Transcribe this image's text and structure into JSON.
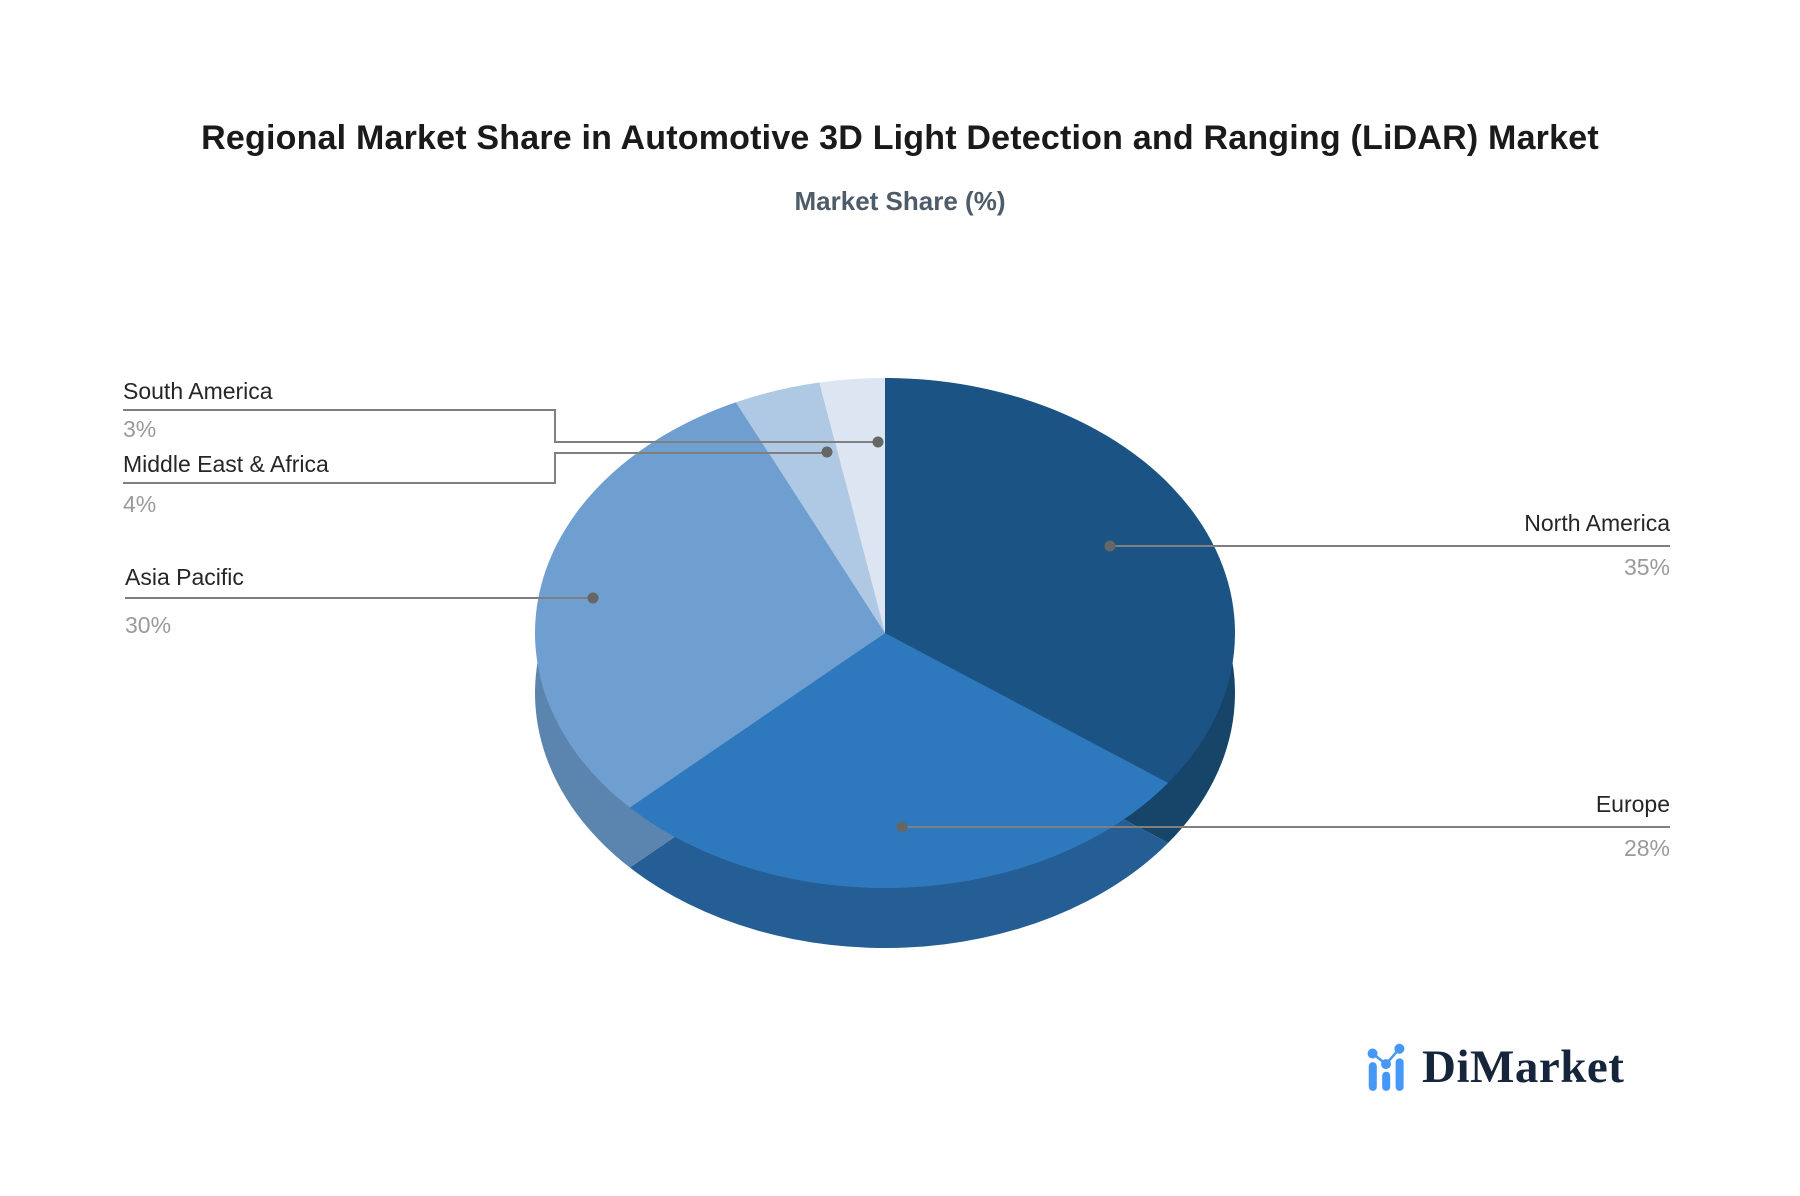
{
  "page": {
    "title": "Regional Market Share in Automotive 3D Light Detection and Ranging (LiDAR) Market",
    "subtitle": "Market Share (%)"
  },
  "branding": {
    "logo_text": "DiMarket",
    "logo_color": "#16253c",
    "logo_icon": "bar-line-chart-icon",
    "logo_icon_color": "#4598F7"
  },
  "chart_data": {
    "type": "pie",
    "style": "3d",
    "title": "Regional Market Share in Automotive 3D Light Detection and Ranging (LiDAR) Market",
    "subtitle": "Market Share (%)",
    "unit": "%",
    "start_angle_deg": -90,
    "direction": "clockwise",
    "legend_position": "none",
    "labels": "outside-callout",
    "slices": [
      {
        "label": "North America",
        "value": 35,
        "display": "35%",
        "color": "#1B5484",
        "side_color": "#164569"
      },
      {
        "label": "Europe",
        "value": 28,
        "display": "28%",
        "color": "#2E79BE",
        "side_color": "#255E95"
      },
      {
        "label": "Asia Pacific",
        "value": 30,
        "display": "30%",
        "color": "#6F9FD1",
        "side_color": "#5B85AE"
      },
      {
        "label": "Middle East & Africa",
        "value": 4,
        "display": "4%",
        "color": "#AFC9E4",
        "side_color": "#8FA9C4"
      },
      {
        "label": "South America",
        "value": 3,
        "display": "3%",
        "color": "#DCE5F1",
        "side_color": "#BCC8D9"
      }
    ],
    "callout_style": {
      "line_color": "#7F7F7F",
      "dot_color": "#666666",
      "name_color": "#262626",
      "value_color": "#9A9A9A"
    }
  }
}
